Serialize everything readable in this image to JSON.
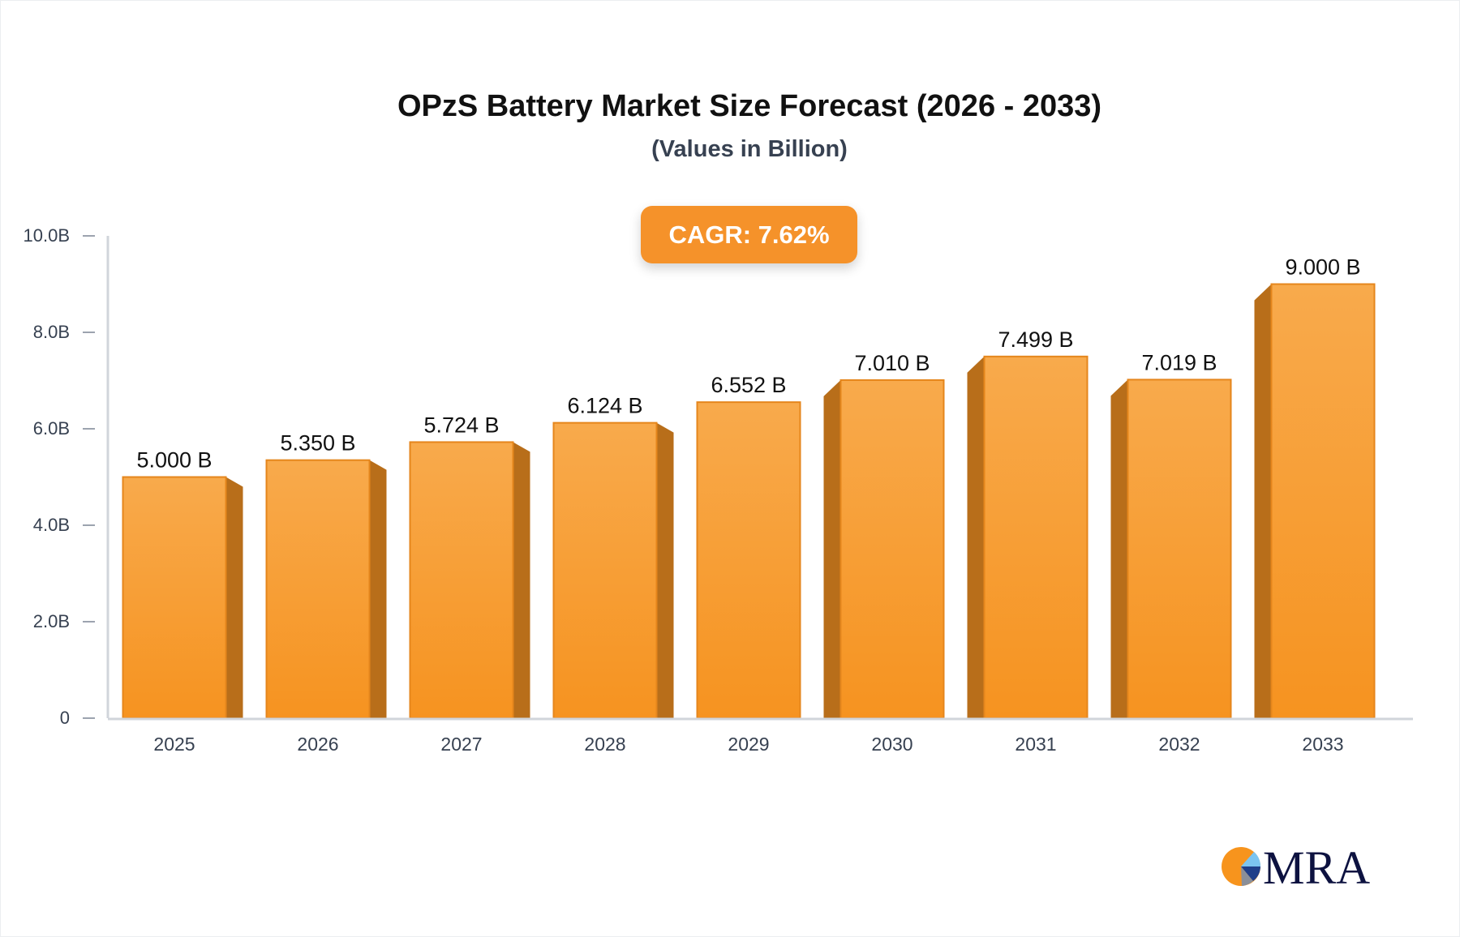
{
  "chart_data": {
    "type": "bar",
    "title": "OPzS Battery Market Size Forecast (2026 - 2033)",
    "subtitle": "(Values in Billion)",
    "annotation": "CAGR: 7.62%",
    "categories": [
      "2025",
      "2026",
      "2027",
      "2028",
      "2029",
      "2030",
      "2031",
      "2032",
      "2033"
    ],
    "values": [
      5.0,
      5.35,
      5.724,
      6.124,
      6.552,
      7.01,
      7.499,
      7.019,
      9.0
    ],
    "data_labels": [
      "5.000 B",
      "5.350 B",
      "5.724 B",
      "6.124 B",
      "6.552 B",
      "7.010 B",
      "7.499 B",
      "7.019 B",
      "9.000 B"
    ],
    "yticks": [
      0,
      2,
      4,
      6,
      8,
      10
    ],
    "ytick_labels": [
      "0",
      "2.0B",
      "4.0B",
      "6.0B",
      "8.0B",
      "10.0B"
    ],
    "ylim": [
      0,
      10
    ],
    "xlabel": "",
    "ylabel": "",
    "grid": false,
    "colors": {
      "bar_top": "#f8aa4c",
      "bar_bottom": "#f69320",
      "bar_side": "#b86e1a",
      "axis": "#d1d5db",
      "badge": "#f5922a"
    }
  },
  "logo": {
    "text": "MRA"
  }
}
